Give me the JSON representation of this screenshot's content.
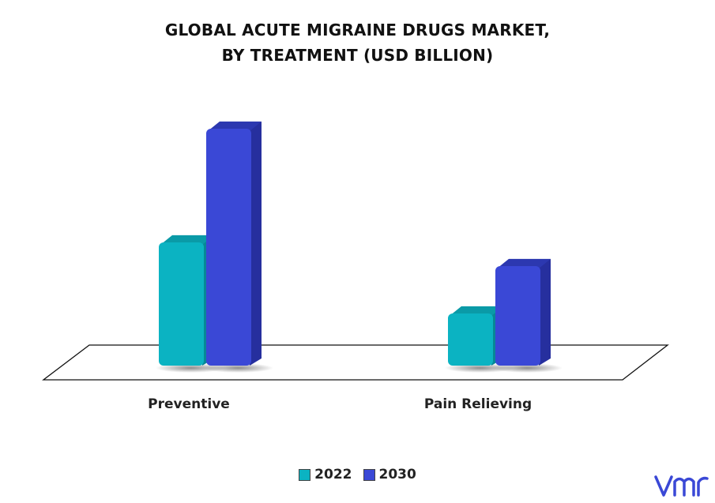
{
  "title_line1": "GLOBAL ACUTE MIGRAINE DRUGS MARKET,",
  "title_line2": "BY TREATMENT (USD BILLION)",
  "colors": {
    "s2022": "#0bb3c2",
    "s2030": "#3a48d6"
  },
  "logo": "vmr-logo",
  "chart_data": {
    "type": "bar",
    "title": "GLOBAL ACUTE MIGRAINE DRUGS MARKET, BY TREATMENT (USD BILLION)",
    "categories": [
      "Preventive",
      "Pain Relieving"
    ],
    "series": [
      {
        "name": "2022",
        "values": [
          2.6,
          1.1
        ]
      },
      {
        "name": "2030",
        "values": [
          5.0,
          2.1
        ]
      }
    ],
    "ylim": [
      0,
      5.5
    ],
    "grid": false,
    "legend": "bottom-center"
  }
}
